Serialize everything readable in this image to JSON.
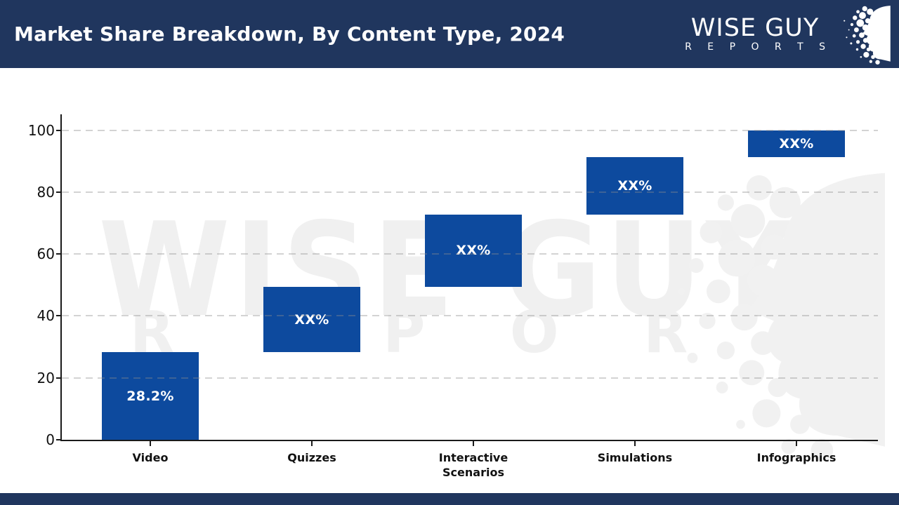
{
  "header": {
    "title": "Market Share Breakdown, By Content Type, 2024",
    "logo": {
      "line1": "WISE GUY",
      "line2": "R E P O R T S"
    }
  },
  "watermark": {
    "line1": "WISE GUY",
    "line2": "R E P O R T S"
  },
  "colors": {
    "header_navy": "#20365e",
    "bar_blue": "#0d4a9e",
    "bar_label_white": "#ffffff",
    "gridline_gray": "#d9d9d9",
    "watermark_gray": "#f0f0f0"
  },
  "chart_data": {
    "type": "bar",
    "subtype": "waterfall",
    "title": "Market Share Breakdown, By Content Type, 2024",
    "categories": [
      "Video",
      "Quizzes",
      "Interactive Scenarios",
      "Simulations",
      "Infographics"
    ],
    "segments": [
      {
        "category": "Video",
        "lines": [
          "Video"
        ],
        "start": 0,
        "end": 28.2,
        "value_label": "28.2%"
      },
      {
        "category": "Quizzes",
        "lines": [
          "Quizzes"
        ],
        "start": 28.2,
        "end": 49.4,
        "value_label": "XX%"
      },
      {
        "category": "Interactive Scenarios",
        "lines": [
          "Interactive",
          "Scenarios"
        ],
        "start": 49.4,
        "end": 72.7,
        "value_label": "XX%"
      },
      {
        "category": "Simulations",
        "lines": [
          "Simulations"
        ],
        "start": 72.7,
        "end": 91.3,
        "value_label": "XX%"
      },
      {
        "category": "Infographics",
        "lines": [
          "Infographics"
        ],
        "start": 91.3,
        "end": 100,
        "value_label": "XX%"
      }
    ],
    "xlabel": "",
    "ylabel": "",
    "y_axis": {
      "ticks": [
        0,
        20,
        40,
        60,
        80,
        100
      ],
      "range": [
        0,
        104
      ]
    },
    "grid": {
      "visible": true,
      "style": "dashed",
      "orientation": "horizontal"
    },
    "legend": "none"
  }
}
